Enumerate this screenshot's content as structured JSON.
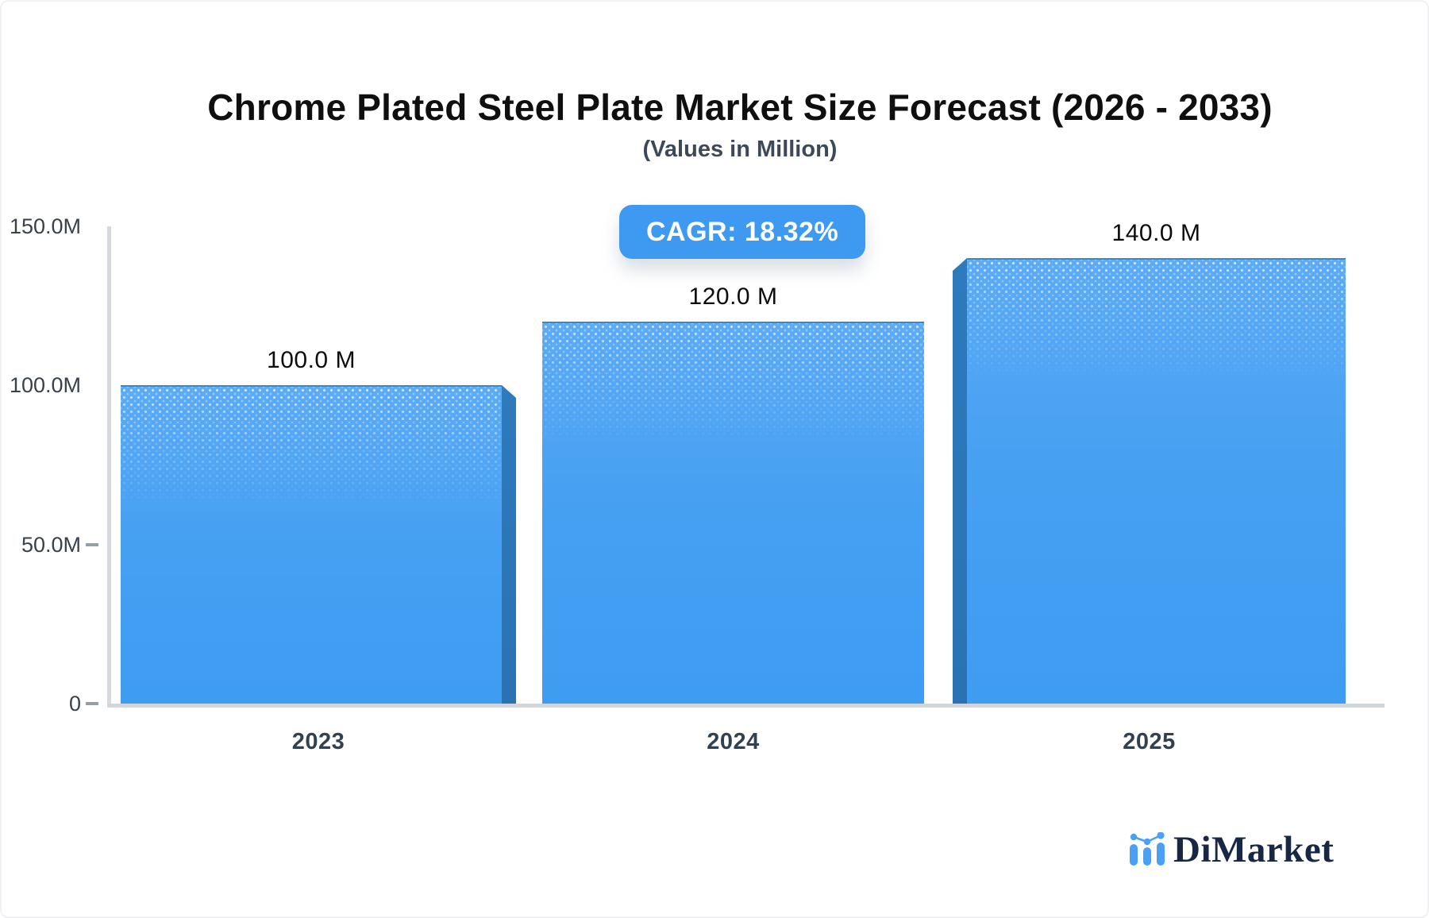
{
  "title": "Chrome Plated Steel Plate Market Size Forecast (2026 - 2033)",
  "subtitle": "(Values in Million)",
  "cagr_label": "CAGR: 18.32%",
  "brand": {
    "name": "DiMarket"
  },
  "colors": {
    "bar_front": "#47a1f2",
    "bar_side": "#2b75b7",
    "badge_bg": "#3d9af0",
    "axis_line": "#d4d7db",
    "brand_blue": "#4aa0f5",
    "brand_navy": "#182743"
  },
  "y_axis": {
    "ticks": [
      {
        "label": "150.0M",
        "value": 150,
        "dash": false
      },
      {
        "label": "100.0M",
        "value": 100,
        "dash": false
      },
      {
        "label": "50.0M",
        "value": 50,
        "dash": true
      },
      {
        "label": "0",
        "value": 0,
        "dash": true
      }
    ]
  },
  "chart_data": {
    "type": "bar",
    "title": "Chrome Plated Steel Plate Market Size Forecast (2026 - 2033)",
    "subtitle": "(Values in Million)",
    "annotation": "CAGR: 18.32%",
    "categories": [
      "2023",
      "2024",
      "2025"
    ],
    "values": [
      100,
      120,
      140
    ],
    "value_labels": [
      "100.0 M",
      "120.0 M",
      "140.0 M"
    ],
    "unit": "Million",
    "ylim": [
      0,
      150
    ],
    "y_tick_labels": [
      "0",
      "50.0M",
      "100.0M",
      "150.0M"
    ],
    "grid": false,
    "legend": false
  }
}
